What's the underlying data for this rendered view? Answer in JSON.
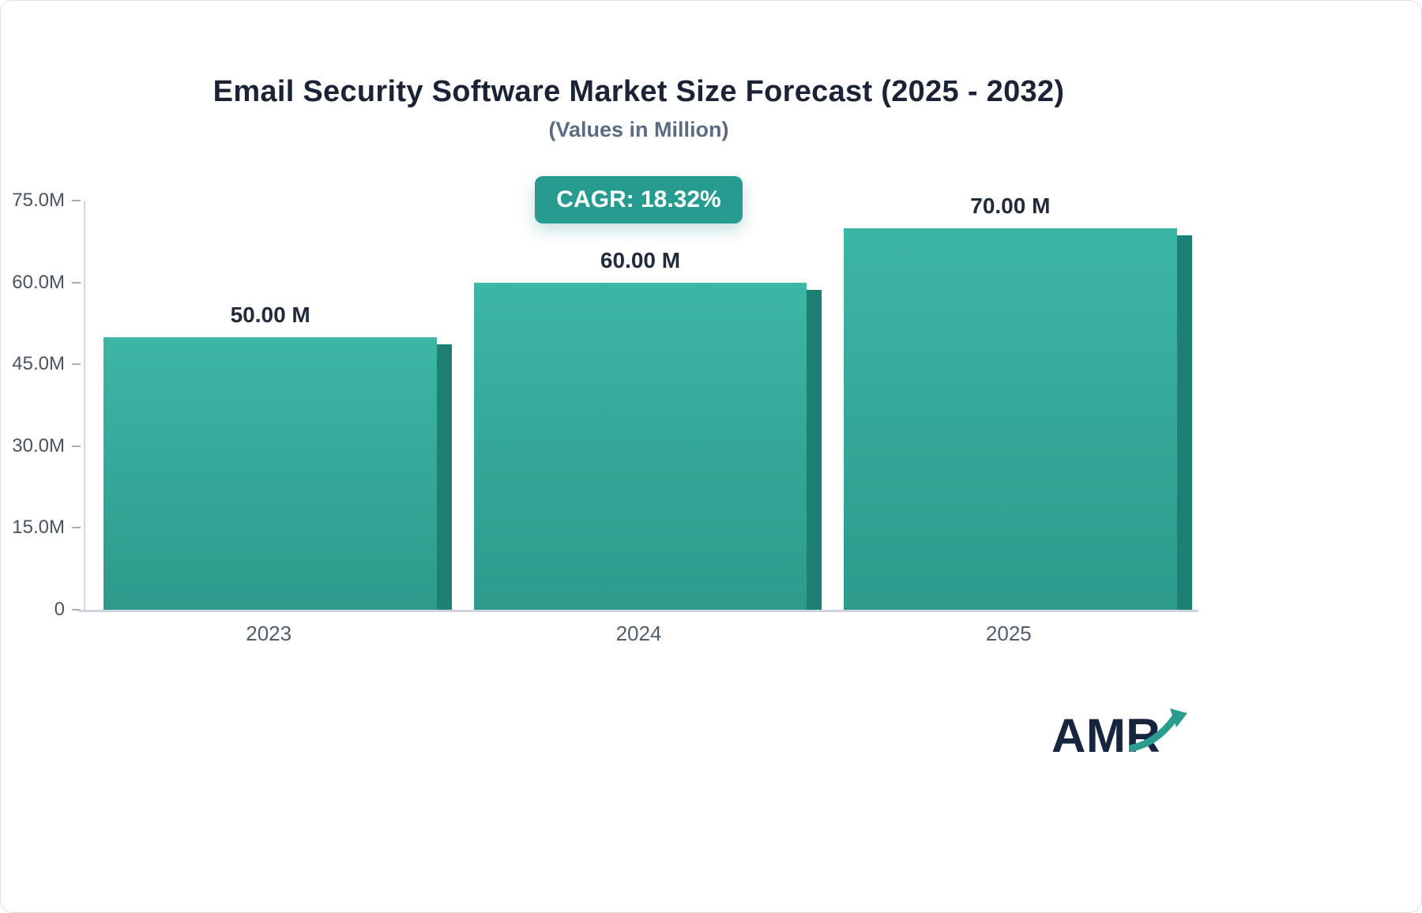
{
  "chart_data": {
    "type": "bar",
    "title": "Email Security Software Market Size Forecast (2025 - 2032)",
    "subtitle": "(Values in Million)",
    "cagr_badge": "CAGR: 18.32%",
    "categories": [
      "2023",
      "2024",
      "2025"
    ],
    "values": [
      50,
      60,
      70
    ],
    "value_labels": [
      "50.00 M",
      "60.00 M",
      "70.00 M"
    ],
    "xlabel": "",
    "ylabel": "",
    "ylim": [
      0,
      75
    ],
    "yticks": [
      0,
      15,
      30,
      45,
      60,
      75
    ],
    "ytick_labels": [
      "0",
      "15.0M",
      "30.0M",
      "45.0M",
      "60.0M",
      "75.0M"
    ],
    "grid": "off",
    "legend": "none",
    "bar_color_top": "#3cb6a5",
    "bar_color_bottom": "#2d9a8c",
    "bar_side_color": "#1e7f75",
    "accent_color": "#279b90"
  },
  "logo": {
    "text": "AMR"
  }
}
